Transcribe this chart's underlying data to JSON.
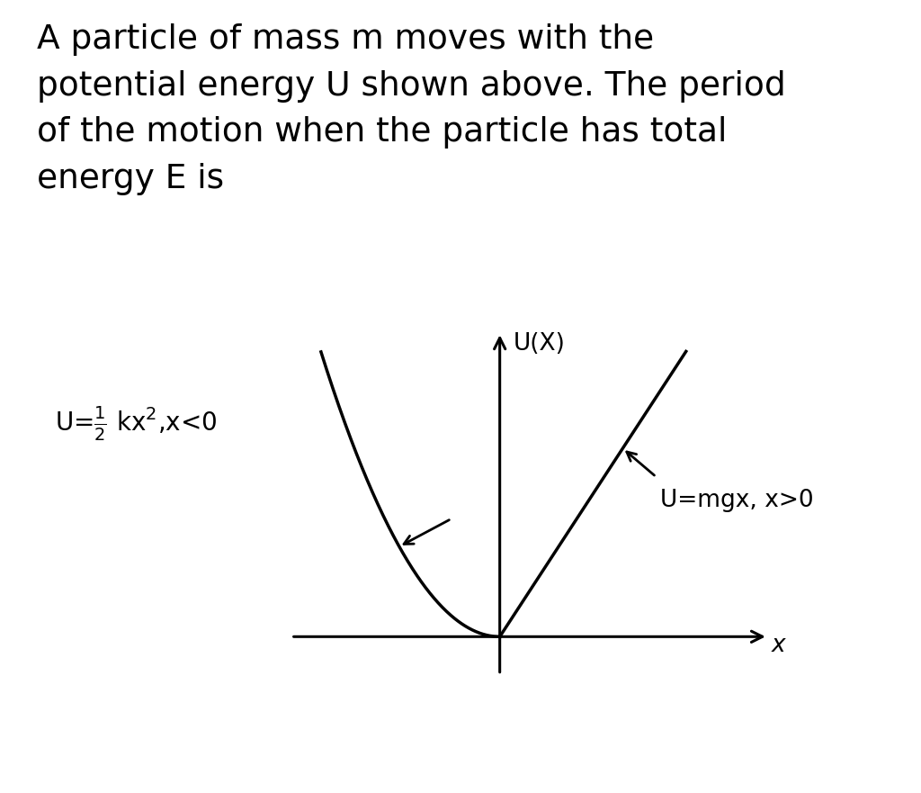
{
  "background_color": "#ffffff",
  "text_color": "#000000",
  "title_text": "A particle of mass m moves with the\npotential energy U shown above. The period\nof the motion when the particle has total\nenergy E is",
  "title_fontsize": 27,
  "curve_color": "#000000",
  "curve_linewidth": 2.5,
  "axis_linewidth": 2.2,
  "label_ux": "U(X)",
  "label_x": "x",
  "label_right": "U=mgx, x>0",
  "xlim": [
    -3.0,
    3.8
  ],
  "ylim": [
    -0.7,
    4.2
  ],
  "parabola_scale": 0.65,
  "linear_slope": 1.5,
  "x_left_end": -2.4,
  "x_right_end": 2.5
}
